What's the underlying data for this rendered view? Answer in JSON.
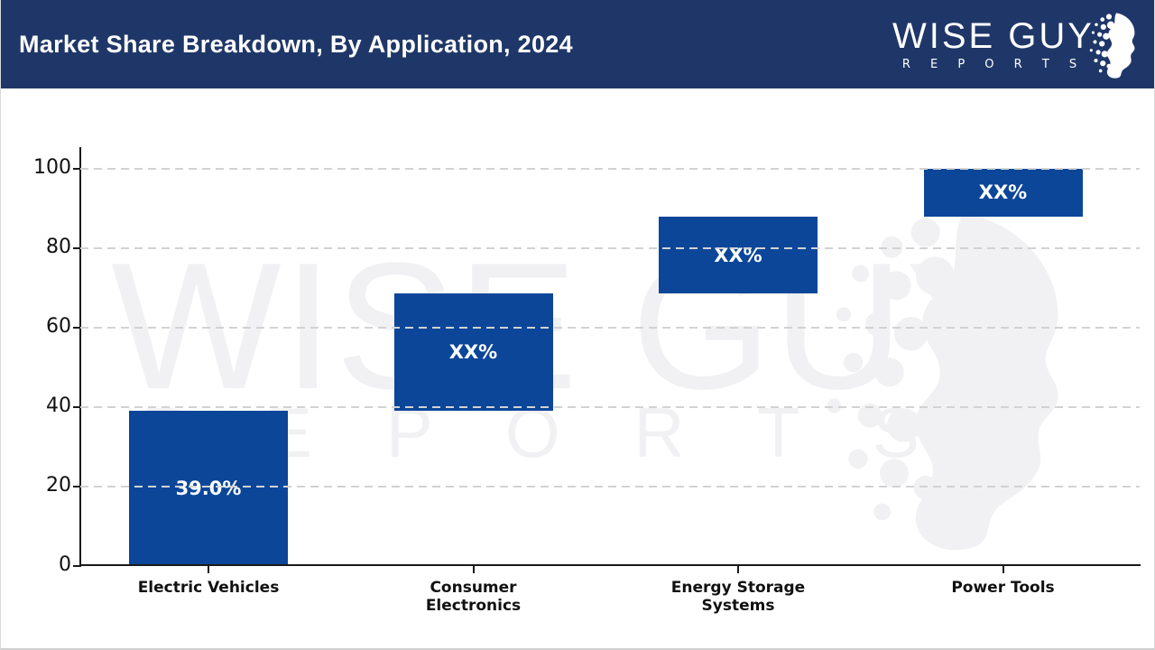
{
  "header": {
    "title": "Market Share Breakdown, By Application, 2024",
    "logo": {
      "line1": "WISE GUY",
      "line2": "R E P O R T S"
    }
  },
  "watermark": {
    "line1": "WISE GUY",
    "line2": "R E P O R T S"
  },
  "colors": {
    "header_bg": "#1f3768",
    "bar": "#0b4699",
    "grid": "#d2d2d2",
    "axis": "#1a1a1a",
    "bar_label": "#ffffff",
    "watermark": "#f1f1f3"
  },
  "chart_data": {
    "type": "bar",
    "subtype": "waterfall",
    "title": "Market Share Breakdown, By Application, 2024",
    "categories": [
      "Electric Vehicles",
      "Consumer Electronics",
      "Energy Storage Systems",
      "Power Tools"
    ],
    "segments": [
      {
        "category": "Electric Vehicles",
        "start": 0,
        "end": 39,
        "label": "39.0%"
      },
      {
        "category": "Consumer Electronics",
        "start": 39,
        "end": 68.5,
        "label": "XX%"
      },
      {
        "category": "Energy Storage Systems",
        "start": 68.5,
        "end": 88,
        "label": "XX%"
      },
      {
        "category": "Power Tools",
        "start": 88,
        "end": 100,
        "label": "XX%"
      }
    ],
    "xlabel": "",
    "ylabel": "",
    "yticks": [
      0,
      20,
      40,
      60,
      80,
      100
    ],
    "ylim": [
      0,
      105
    ],
    "grid": "horizontal dashed, drawn over bars",
    "legend": "none"
  }
}
